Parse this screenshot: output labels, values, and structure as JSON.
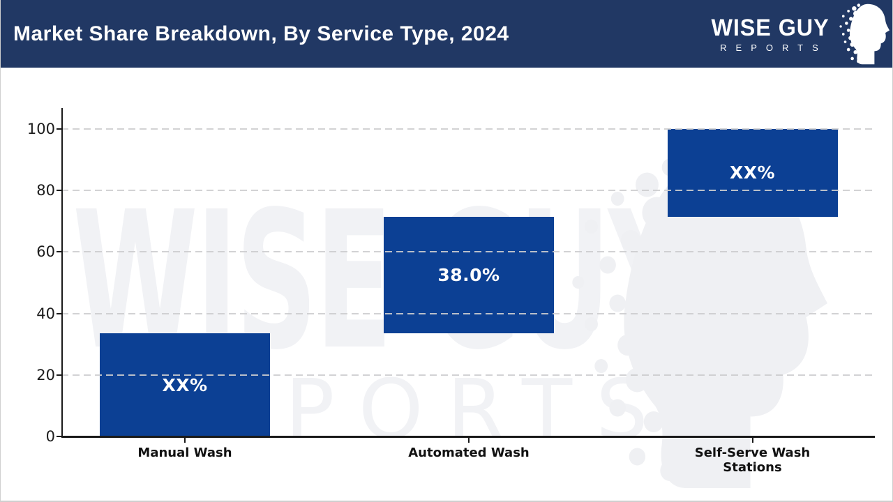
{
  "header": {
    "title": "Market Share Breakdown, By Service Type, 2024",
    "bg_color": "#213864"
  },
  "logo": {
    "name": "WISE GUY",
    "tagline": "REPORTS",
    "icon": "dotted-head-profile-icon",
    "color": "#ffffff"
  },
  "watermark": {
    "name": "WISE GUY",
    "tagline": "REPORTS",
    "icon": "dotted-head-profile-icon",
    "color": "#f1f2f5"
  },
  "chart_data": {
    "type": "bar",
    "subtype": "floating-segment-waterfall",
    "title": "Market Share Breakdown, By Service Type, 2024",
    "categories": [
      "Manual Wash",
      "Automated Wash",
      "Self-Serve Wash Stations"
    ],
    "bars": [
      {
        "category": "Manual Wash",
        "start": 0,
        "end": 33.5,
        "height": 33.5,
        "label": "XX%"
      },
      {
        "category": "Automated Wash",
        "start": 33.5,
        "end": 71.5,
        "height": 38.0,
        "label": "38.0%"
      },
      {
        "category": "Self-Serve Wash Stations",
        "start": 71.5,
        "end": 100,
        "height": 28.5,
        "label": "XX%"
      }
    ],
    "ylim": [
      0,
      100
    ],
    "yticks": [
      0,
      20,
      40,
      60,
      80,
      100
    ],
    "xlabel": "",
    "ylabel": "",
    "grid": "horizontal-dashed",
    "legend": "none",
    "bar_color": "#0c4094",
    "bar_label_color": "#ffffff",
    "axis_color": "#1a1a1a",
    "gridline_color": "#d9d9d9"
  }
}
